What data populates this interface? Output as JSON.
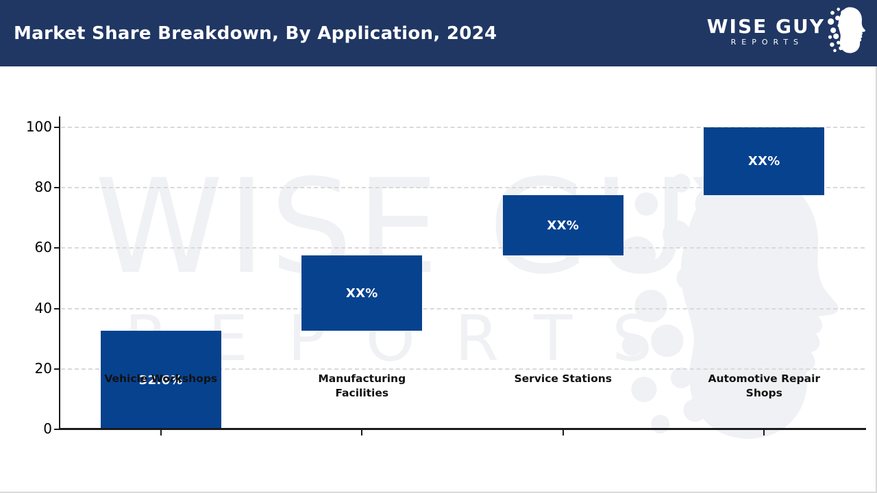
{
  "header": {
    "title": "Market Share Breakdown, By Application, 2024",
    "logo_line1": "WISE GUY",
    "logo_line2": "REPORTS"
  },
  "watermark": {
    "line1": "WISE GUY",
    "line2": "REPORTS"
  },
  "colors": {
    "header_bg": "#203764",
    "bar_fill": "#07428f",
    "bar_label": "#ffffff",
    "axis": "#1a1a1a",
    "gridline": "#d9d9d9",
    "watermark": "#f0f1f4",
    "title_text": "#ffffff"
  },
  "chart_data": {
    "type": "bar",
    "variant": "waterfall-floating-bars",
    "title": "Market Share Breakdown, By Application, 2024",
    "xlabel": "",
    "ylabel": "",
    "ylim": [
      0,
      104
    ],
    "yticks": [
      0,
      20,
      40,
      60,
      80,
      100
    ],
    "grid": "horizontal-dashed",
    "legend": "none",
    "categories": [
      "Vehicle Workshops",
      "Manufacturing Facilities",
      "Service Stations",
      "Automotive Repair Shops"
    ],
    "category_label_lines": [
      [
        "Vehicle Workshops"
      ],
      [
        "Manufacturing",
        "Facilities"
      ],
      [
        "Service Stations"
      ],
      [
        "Automotive Repair",
        "Shops"
      ]
    ],
    "bars": [
      {
        "category": "Vehicle Workshops",
        "start": 0,
        "end": 32.6,
        "value": 32.6,
        "label": "32.6%"
      },
      {
        "category": "Manufacturing Facilities",
        "start": 32.6,
        "end": 57.5,
        "value": 24.9,
        "label": "XX%"
      },
      {
        "category": "Service Stations",
        "start": 57.5,
        "end": 77.5,
        "value": 20.0,
        "label": "XX%"
      },
      {
        "category": "Automotive Repair Shops",
        "start": 77.5,
        "end": 100,
        "value": 22.5,
        "label": "XX%"
      }
    ]
  }
}
